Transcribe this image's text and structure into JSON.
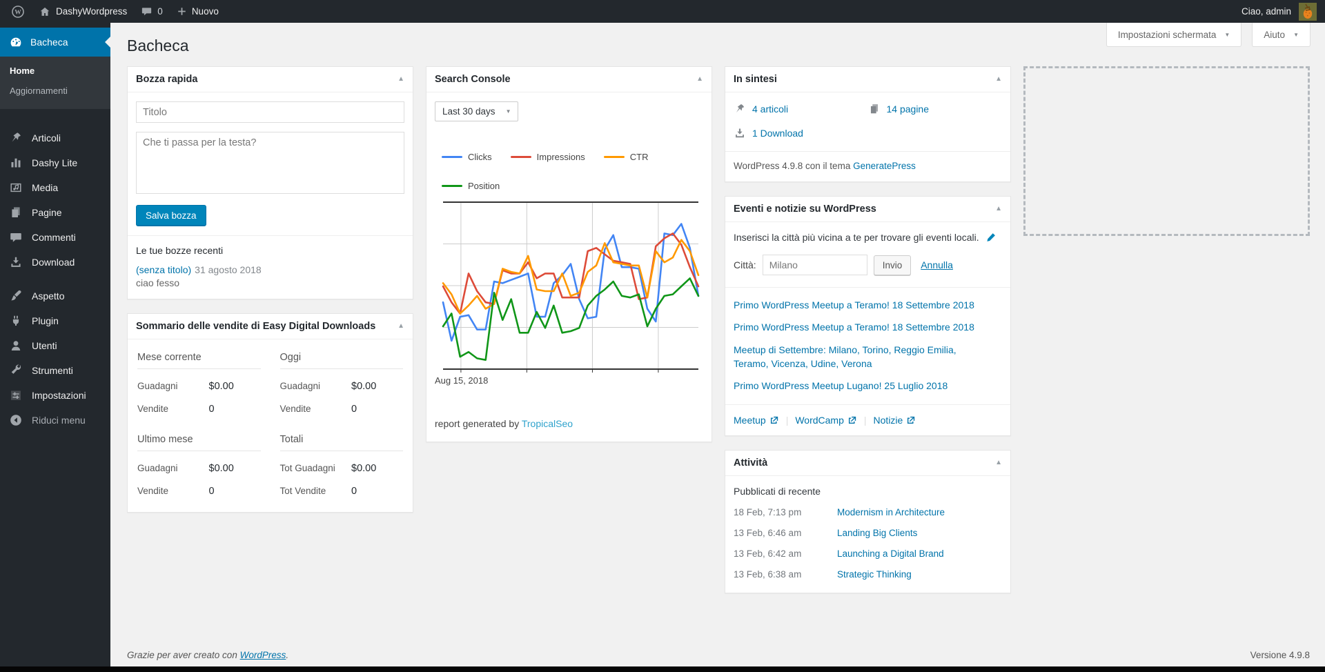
{
  "admin_bar": {
    "site_name": "DashyWordpress",
    "comments_count": "0",
    "new_label": "Nuovo",
    "greeting": "Ciao, admin"
  },
  "screen_meta": {
    "screen_options_label": "Impostazioni schermata",
    "help_label": "Aiuto"
  },
  "page_title": "Bacheca",
  "sidebar": {
    "current_item": "Bacheca",
    "submenu": [
      {
        "label": "Home",
        "current": true
      },
      {
        "label": "Aggiornamenti",
        "current": false
      }
    ],
    "items": [
      {
        "label": "Articoli",
        "icon": "pushpin-icon"
      },
      {
        "label": "Dashy Lite",
        "icon": "bar-chart-icon"
      },
      {
        "label": "Media",
        "icon": "media-icon"
      },
      {
        "label": "Pagine",
        "icon": "pages-icon"
      },
      {
        "label": "Commenti",
        "icon": "comment-icon"
      },
      {
        "label": "Download",
        "icon": "download-icon"
      },
      {
        "label": "Aspetto",
        "icon": "brush-icon",
        "separator_before": true
      },
      {
        "label": "Plugin",
        "icon": "plug-icon"
      },
      {
        "label": "Utenti",
        "icon": "user-icon"
      },
      {
        "label": "Strumenti",
        "icon": "wrench-icon"
      },
      {
        "label": "Impostazioni",
        "icon": "sliders-icon"
      },
      {
        "label": "Riduci menu",
        "icon": "collapse-icon",
        "muted": true
      }
    ]
  },
  "widgets": {
    "quick_draft": {
      "title": "Bozza rapida",
      "title_placeholder": "Titolo",
      "content_placeholder": "Che ti passa per la testa?",
      "save_button": "Salva bozza",
      "recent_drafts_label": "Le tue bozze recenti",
      "draft_link": "(senza titolo)",
      "draft_date": "31 agosto 2018",
      "draft_excerpt": "ciao fesso"
    },
    "edd_summary": {
      "title": "Sommario delle vendite di Easy Digital Downloads",
      "sections": [
        {
          "heading": "Mese corrente",
          "rows": [
            {
              "label": "Guadagni",
              "value": "$0.00"
            },
            {
              "label": "Vendite",
              "value": "0"
            }
          ]
        },
        {
          "heading": "Oggi",
          "rows": [
            {
              "label": "Guadagni",
              "value": "$0.00"
            },
            {
              "label": "Vendite",
              "value": "0"
            }
          ]
        },
        {
          "heading": "Ultimo mese",
          "rows": [
            {
              "label": "Guadagni",
              "value": "$0.00"
            },
            {
              "label": "Vendite",
              "value": "0"
            }
          ]
        },
        {
          "heading": "Totali",
          "rows": [
            {
              "label": "Tot Guadagni",
              "value": "$0.00"
            },
            {
              "label": "Tot Vendite",
              "value": "0"
            }
          ]
        }
      ]
    },
    "search_console": {
      "title": "Search Console",
      "range_selector": "Last 30 days",
      "credit_prefix": "report generated by ",
      "credit_link": "TropicalSeo"
    },
    "at_a_glance": {
      "title": "In sintesi",
      "items": [
        {
          "label": "4 articoli",
          "icon": "pushpin-icon"
        },
        {
          "label": "14 pagine",
          "icon": "pages-icon"
        },
        {
          "label": "1 Download",
          "icon": "download-icon"
        }
      ],
      "version_prefix": "WordPress 4.9.8 con il tema ",
      "theme_link": "GeneratePress"
    },
    "events_news": {
      "title": "Eventi e notizie su WordPress",
      "intro": "Inserisci la città più vicina a te per trovare gli eventi locali.",
      "city_label": "Città:",
      "city_placeholder": "Milano",
      "submit_label": "Invio",
      "cancel_label": "Annulla",
      "events": [
        "Primo WordPress Meetup a Teramo! 18 Settembre 2018",
        "Primo WordPress Meetup a Teramo! 18 Settembre 2018",
        "Meetup di Settembre: Milano, Torino, Reggio Emilia, Teramo, Vicenza, Udine, Verona",
        "Primo WordPress Meetup Lugano! 25 Luglio 2018"
      ],
      "footer_links": [
        "Meetup",
        "WordCamp",
        "Notizie"
      ]
    },
    "activity": {
      "title": "Attività",
      "section_label": "Pubblicati di recente",
      "posts": [
        {
          "date": "18 Feb, 7:13 pm",
          "title": "Modernism in Architecture"
        },
        {
          "date": "13 Feb, 6:46 am",
          "title": "Landing Big Clients"
        },
        {
          "date": "13 Feb, 6:42 am",
          "title": "Launching a Digital Brand"
        },
        {
          "date": "13 Feb, 6:38 am",
          "title": "Strategic Thinking"
        }
      ]
    }
  },
  "chart_data": {
    "type": "line",
    "title": "Search Console — Last 30 days",
    "x_start_label": "Aug 15, 2018",
    "xlabel": "",
    "ylabel": "",
    "ylim": [
      0,
      100
    ],
    "grid": true,
    "legend_position": "top",
    "series": [
      {
        "name": "Clicks",
        "color": "#4285f4",
        "values": [
          40,
          16,
          31,
          32,
          23,
          23,
          53,
          52,
          54,
          56,
          58,
          31,
          31,
          52,
          57,
          64,
          42,
          30,
          31,
          73,
          82,
          62,
          62,
          61,
          36,
          28,
          83,
          82,
          89,
          74,
          44
        ]
      },
      {
        "name": "Impressions",
        "color": "#dd4b39",
        "values": [
          50,
          40,
          33,
          58,
          47,
          40,
          39,
          60,
          58,
          58,
          65,
          55,
          58,
          58,
          43,
          43,
          43,
          72,
          74,
          70,
          66,
          65,
          64,
          42,
          43,
          75,
          80,
          83,
          76,
          62,
          50
        ]
      },
      {
        "name": "CTR",
        "color": "#ff9900",
        "values": [
          52,
          45,
          33,
          38,
          44,
          36,
          39,
          61,
          59,
          58,
          69,
          48,
          47,
          47,
          58,
          44,
          46,
          59,
          63,
          77,
          65,
          64,
          63,
          63,
          43,
          72,
          65,
          68,
          79,
          72,
          57
        ]
      },
      {
        "name": "Position",
        "color": "#109618",
        "values": [
          25,
          33,
          6,
          9,
          5,
          4,
          46,
          29,
          42,
          21,
          21,
          34,
          24,
          38,
          21,
          22,
          24,
          38,
          44,
          48,
          53,
          44,
          43,
          45,
          25,
          36,
          44,
          45,
          50,
          55,
          44
        ]
      }
    ]
  },
  "footer": {
    "thanks_prefix": "Grazie per aver creato con ",
    "thanks_link": "WordPress",
    "thanks_suffix": ".",
    "version": "Versione 4.9.8"
  },
  "colors": {
    "accent": "#0073aa",
    "admin_bar_bg": "#23282d",
    "button_primary": "#0085ba",
    "body_bg": "#f1f1f1"
  }
}
